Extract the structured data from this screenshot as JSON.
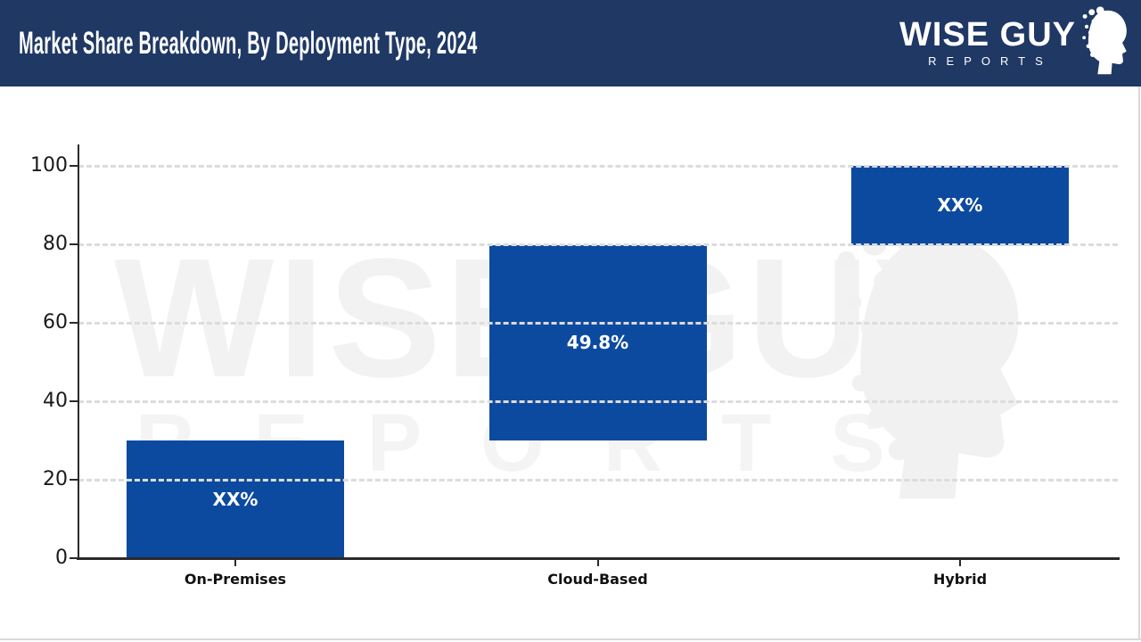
{
  "header": {
    "title": "Market Share Breakdown, By Deployment Type, 2024",
    "bg_color": "#1f3864",
    "logo": {
      "line1": "WISE GUY",
      "line2": "REPORTS"
    }
  },
  "watermark": {
    "line1": "WISE GUY",
    "line2": "REPORTS"
  },
  "chart_data": {
    "type": "bar",
    "variant": "waterfall",
    "title": "Market Share Breakdown, By Deployment Type, 2024",
    "categories": [
      "On-Premises",
      "Cloud-Based",
      "Hybrid"
    ],
    "series": [
      {
        "name": "Market share (%)",
        "segments": [
          {
            "category": "On-Premises",
            "start": 0,
            "end": 30,
            "value_label": "XX%"
          },
          {
            "category": "Cloud-Based",
            "start": 30,
            "end": 79.8,
            "value_label": "49.8%"
          },
          {
            "category": "Hybrid",
            "start": 79.8,
            "end": 100,
            "value_label": "XX%"
          }
        ]
      }
    ],
    "xlabel": "",
    "ylabel": "",
    "ylim": [
      0,
      100
    ],
    "yticks": [
      0,
      20,
      40,
      60,
      80,
      100
    ],
    "grid": {
      "horizontal": true,
      "style": "dashed",
      "color": "#dcdcdc"
    },
    "legend": "none",
    "bar_color": "#0c4aa0",
    "bar_label_color": "#ffffff",
    "axis_color": "#2a2a2a",
    "tick_label_color": "#1a1a1a"
  }
}
